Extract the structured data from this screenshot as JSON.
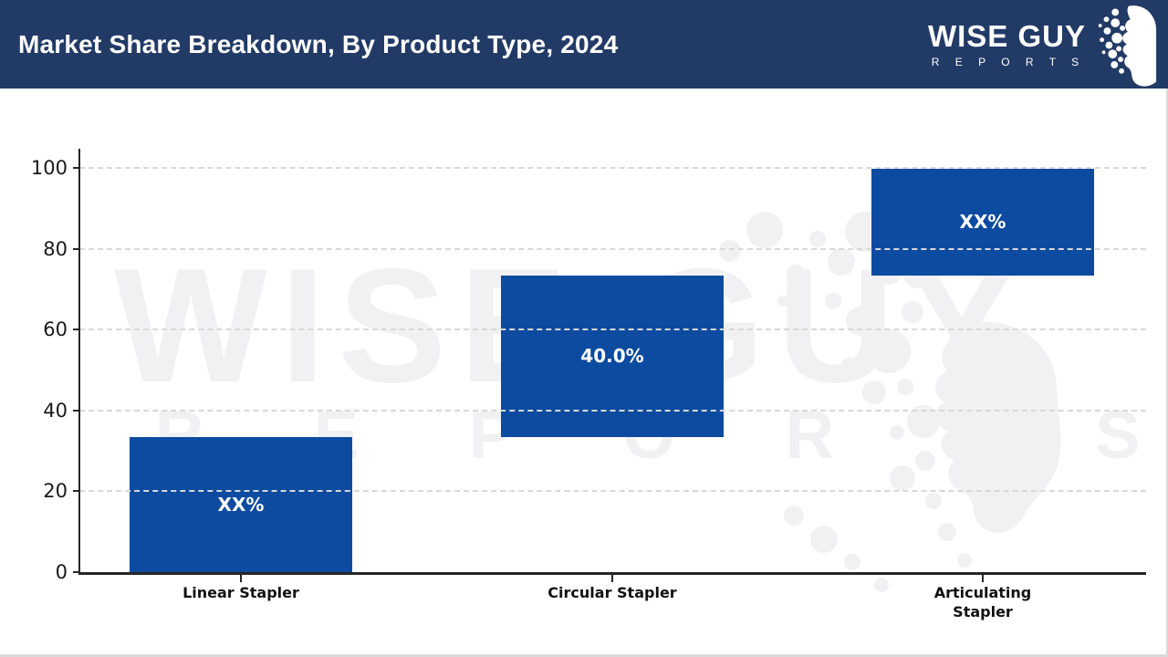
{
  "header": {
    "title": "Market Share Breakdown, By Product Type, 2024",
    "brand": {
      "name": "WISE GUY",
      "tagline": "R E P O R T S",
      "head_icon": "dotted-head-profile"
    }
  },
  "watermark": {
    "line1": "WISE GUY",
    "line2": "R E P O R T S",
    "head_icon": "dotted-head-profile"
  },
  "chart_data": {
    "type": "bar",
    "subtype": "floating-column-waterfall",
    "title": "Market Share Breakdown, By Product Type, 2024",
    "categories": [
      "Linear Stapler",
      "Circular Stapler",
      "Articulating Stapler"
    ],
    "series": [
      {
        "name": "Market Share (%)",
        "segments": [
          {
            "category": "Linear Stapler",
            "from": 0,
            "to": 33.4,
            "label": "XX%"
          },
          {
            "category": "Circular Stapler",
            "from": 33.4,
            "to": 73.4,
            "label": "40.0%"
          },
          {
            "category": "Articulating Stapler",
            "from": 73.4,
            "to": 99.8,
            "label": "XX%"
          }
        ]
      }
    ],
    "xlabel": "",
    "ylabel": "",
    "ylim": [
      0,
      105
    ],
    "yticks": [
      0,
      20,
      40,
      60,
      80,
      100
    ],
    "grid": "horizontal-dashed",
    "legend": "none",
    "colors": {
      "bar": "#0c4ba0",
      "bar_label": "#ffffff",
      "grid": "#d8d8d8",
      "axis": "#262626",
      "tick_label": "#1a1a1a",
      "category_label": "#111111",
      "header_bg": "#223a66",
      "header_text": "#ffffff",
      "watermark": "#f1f1f4"
    }
  }
}
